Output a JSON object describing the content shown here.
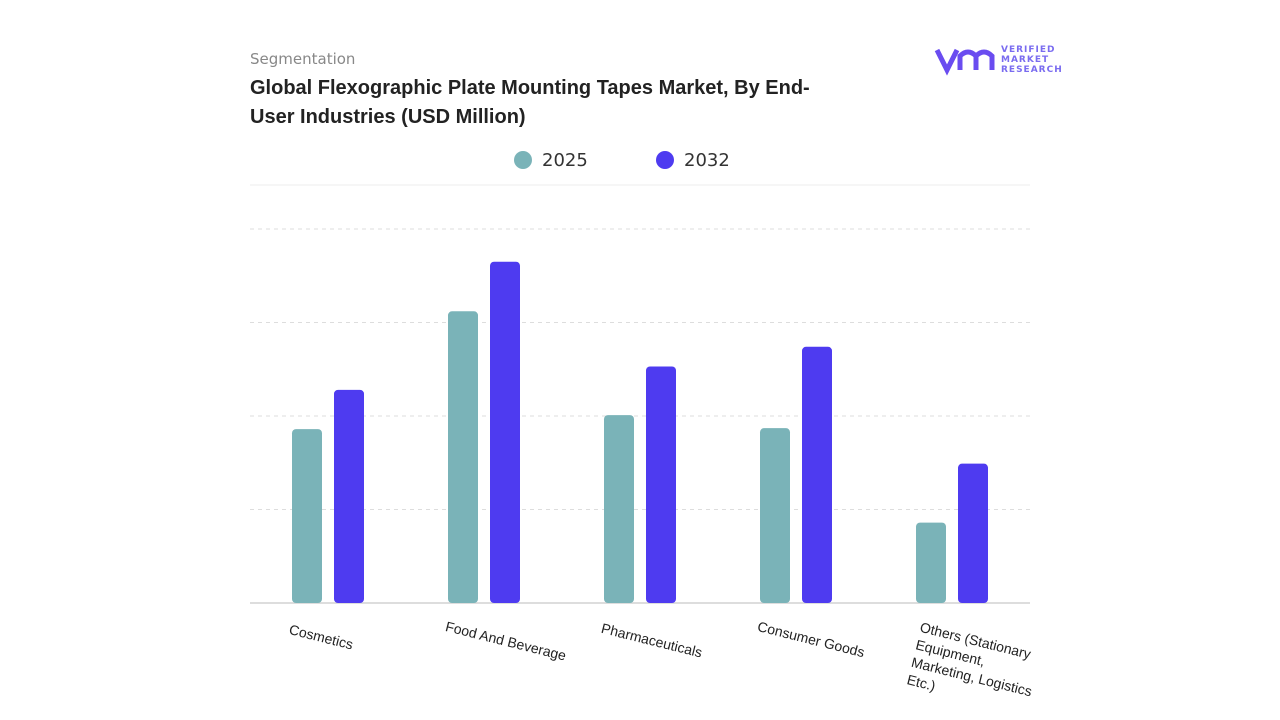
{
  "chart_data": {
    "type": "bar",
    "subtitle": "Segmentation",
    "title": "Global Flexographic Plate Mounting Tapes Market, By End-User Industries (USD Million)",
    "brand": [
      "VERIFIED",
      "MARKET",
      "RESEARCH"
    ],
    "categories": [
      "Cosmetics",
      "Food And Beverage",
      "Pharmaceuticals",
      "Consumer Goods",
      "Others (Stationary Equipment, Marketing, Logistics Etc.)"
    ],
    "series": [
      {
        "name": "2025",
        "color": "#7ab3b8",
        "values": [
          1.86,
          3.12,
          2.01,
          1.87,
          0.86
        ]
      },
      {
        "name": "2032",
        "color": "#4e3bf0",
        "values": [
          2.28,
          3.65,
          2.53,
          2.74,
          1.49
        ]
      }
    ],
    "ylim": [
      0,
      4
    ],
    "yticks": [
      1,
      2,
      3,
      4
    ],
    "grid": true
  }
}
